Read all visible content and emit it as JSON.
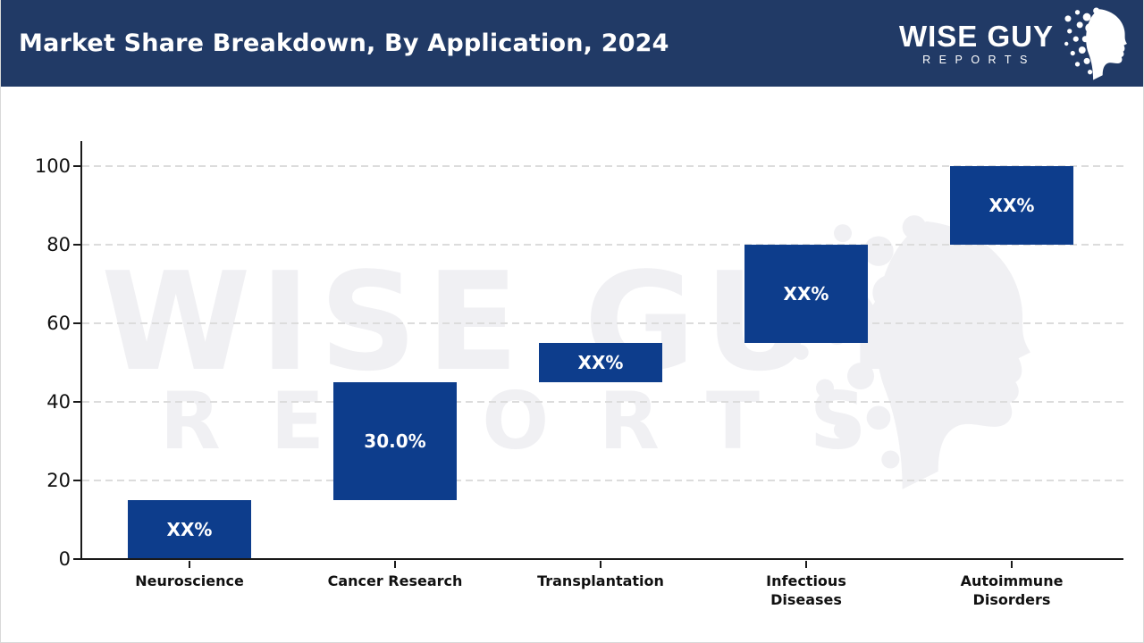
{
  "header": {
    "title": "Market Share Breakdown, By Application, 2024",
    "background_color": "#213a66"
  },
  "brand": {
    "line1": "WISE GUY",
    "line2": "REPORTS"
  },
  "watermark": {
    "line1": "WISE GUY",
    "line2": "REPORTS"
  },
  "chart_data": {
    "type": "bar",
    "subtype": "floating-waterfall",
    "title": "Market Share Breakdown, By Application, 2024",
    "categories": [
      "Neuroscience",
      "Cancer Research",
      "Transplantation",
      "Infectious\nDiseases",
      "Autoimmune\nDisorders"
    ],
    "series": [
      {
        "name": "Market Share (%)",
        "ranges": [
          [
            0,
            15
          ],
          [
            15,
            45
          ],
          [
            45,
            55
          ],
          [
            55,
            80
          ],
          [
            80,
            100
          ]
        ],
        "labels": [
          "XX%",
          "30.0%",
          "XX%",
          "XX%",
          "XX%"
        ]
      }
    ],
    "xlabel": "",
    "ylabel": "",
    "ylim": [
      0,
      105
    ],
    "yticks": [
      0,
      20,
      40,
      60,
      80,
      100
    ],
    "grid": "horizontal-dashed",
    "legend": "none",
    "bar_color": "#0d3d8c",
    "bar_label_color": "#ffffff",
    "gridline_color": "#dcdcdc",
    "axis_color": "#1a1a1a"
  }
}
